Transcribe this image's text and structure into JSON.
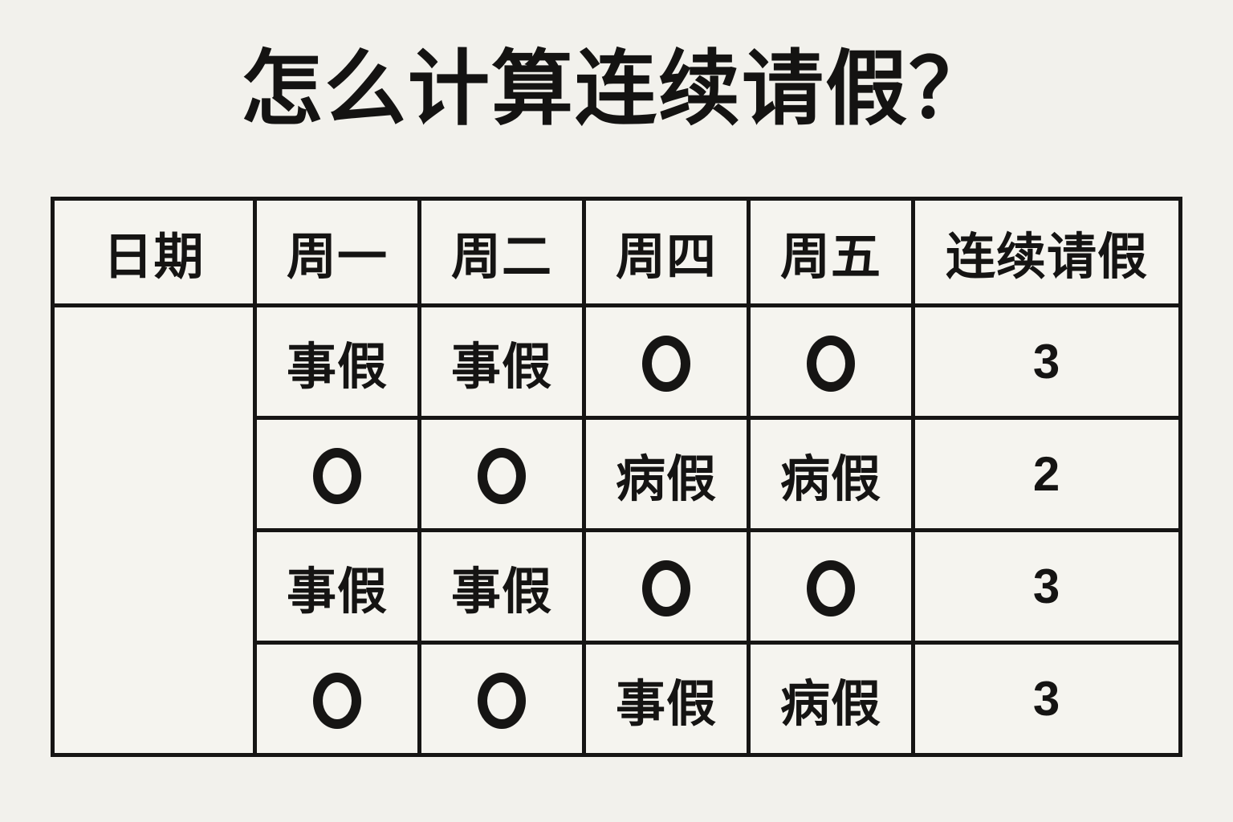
{
  "page": {
    "title": "怎么计算连续请假？",
    "colors": {
      "background": "#f2f1ec",
      "cell_background": "#f5f4ef",
      "border": "#161514",
      "text": "#141312"
    }
  },
  "table": {
    "headers": [
      "日期",
      "周一",
      "周二",
      "周四",
      "周五",
      "连续请假"
    ],
    "date_cell": "",
    "circle_symbol": "○",
    "rows": [
      [
        "事假",
        "事假",
        "○",
        "○",
        "3"
      ],
      [
        "○",
        "○",
        "病假",
        "病假",
        "2"
      ],
      [
        "事假",
        "事假",
        "○",
        "○",
        "3"
      ],
      [
        "○",
        "○",
        "事假",
        "病假",
        "3"
      ]
    ]
  },
  "chart_data": {
    "type": "table",
    "title": "怎么计算连续请假？",
    "columns": [
      "日期",
      "周一",
      "周二",
      "周四",
      "周五",
      "连续请假"
    ],
    "rows": [
      [
        "",
        "事假",
        "事假",
        "○",
        "○",
        3
      ],
      [
        "",
        "○",
        "○",
        "病假",
        "病假",
        2
      ],
      [
        "",
        "事假",
        "事假",
        "○",
        "○",
        3
      ],
      [
        "",
        "○",
        "○",
        "事假",
        "病假",
        3
      ]
    ],
    "merged_cells": [
      {
        "column": "日期",
        "rowspan": 4,
        "value": ""
      }
    ],
    "legend_position": "none",
    "grid": true
  }
}
